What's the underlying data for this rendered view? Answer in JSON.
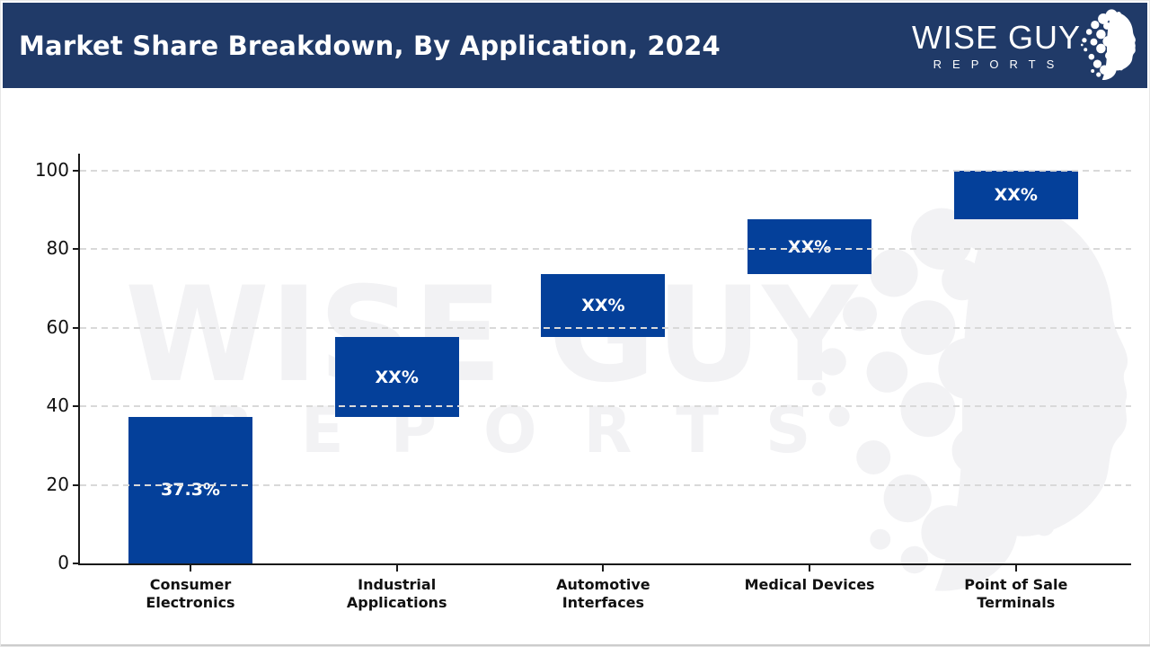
{
  "header": {
    "title": "Market Share Breakdown, By Application, 2024",
    "logo": {
      "name": "WISE GUY",
      "subtitle": "REPORTS"
    }
  },
  "watermark": {
    "line1": "WISE GUY",
    "line2": "REPORTS"
  },
  "chart_data": {
    "type": "bar",
    "subtype": "waterfall",
    "title": "Market Share Breakdown, By Application, 2024",
    "xlabel": "",
    "ylabel": "",
    "ylim": [
      0,
      105
    ],
    "yticks": [
      0,
      20,
      40,
      60,
      80,
      100
    ],
    "grid": "horizontal-dashed",
    "legend": "none",
    "bar_color": "#04409a",
    "bar_label_color": "#ffffff",
    "categories": [
      "Consumer Electronics",
      "Industrial Applications",
      "Automotive Interfaces",
      "Medical Devices",
      "Point of Sale Terminals"
    ],
    "category_lines": [
      [
        "Consumer",
        "Electronics"
      ],
      [
        "Industrial",
        "Applications"
      ],
      [
        "Automotive",
        "Interfaces"
      ],
      [
        "Medical Devices"
      ],
      [
        "Point of Sale",
        "Terminals"
      ]
    ],
    "segments": [
      {
        "category": "Consumer Electronics",
        "start": 0,
        "end": 37.3,
        "label": "37.3%"
      },
      {
        "category": "Industrial Applications",
        "start": 37.3,
        "end": 57.5,
        "label": "XX%"
      },
      {
        "category": "Automotive Interfaces",
        "start": 57.5,
        "end": 73.5,
        "label": "XX%"
      },
      {
        "category": "Medical Devices",
        "start": 73.5,
        "end": 87.5,
        "label": "XX%"
      },
      {
        "category": "Point of Sale Terminals",
        "start": 87.5,
        "end": 100,
        "label": "XX%"
      }
    ]
  },
  "colors": {
    "header_bg": "#203a68",
    "bar": "#04409a",
    "axis": "#1a1a1a",
    "gridline": "#d9d9d9",
    "watermark": "#f2f2f4",
    "bottom_line": "#cccccc"
  }
}
